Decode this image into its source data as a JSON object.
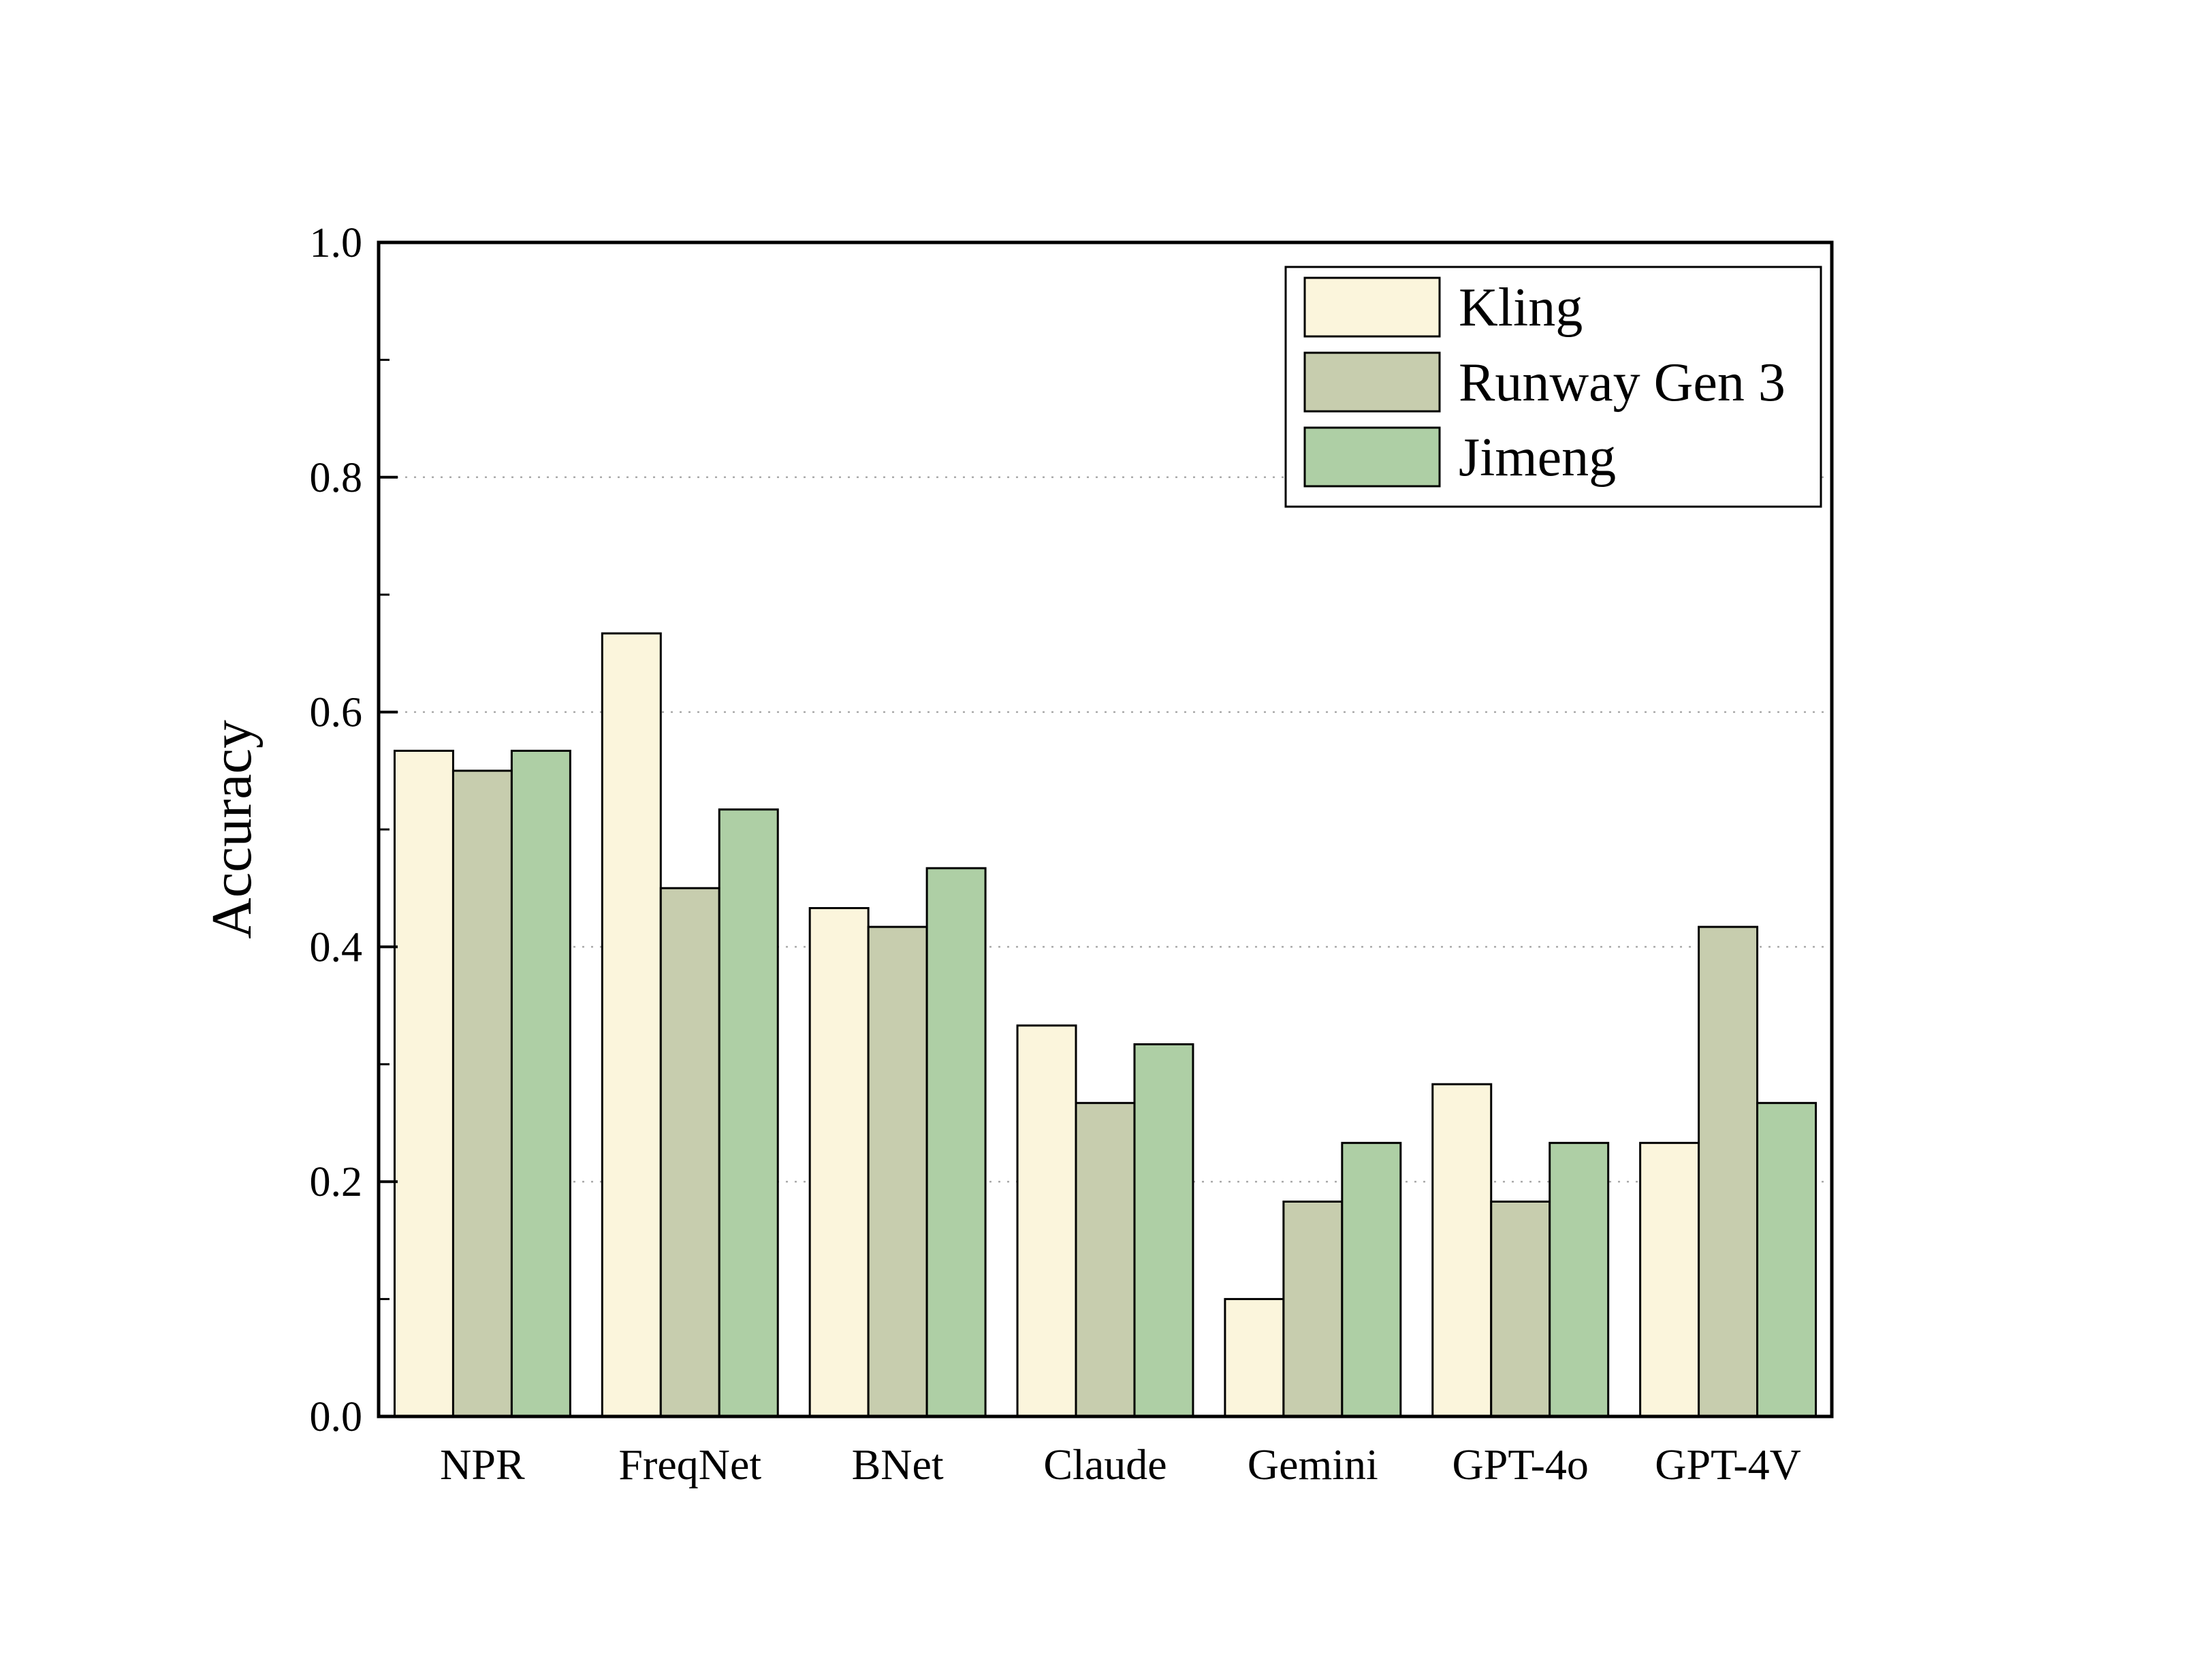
{
  "chart_data": {
    "type": "bar",
    "title": "",
    "xlabel": "",
    "ylabel": "Accuracy",
    "ylim": [
      0.0,
      1.0
    ],
    "yticks": [
      0.0,
      0.2,
      0.4,
      0.6,
      0.8,
      1.0
    ],
    "ytick_labels": [
      "0.0",
      "0.2",
      "0.4",
      "0.6",
      "0.8",
      "1.0"
    ],
    "minor_tick_step": 0.1,
    "grid": "dotted horizontal gridlines at 0.2, 0.4, 0.6, 0.8",
    "legend_position": "top-right",
    "categories": [
      "NPR",
      "FreqNet",
      "BNet",
      "Claude",
      "Gemini",
      "GPT-4o",
      "GPT-4V"
    ],
    "series": [
      {
        "name": "Kling",
        "color": "#FBF5DC",
        "values": [
          0.567,
          0.667,
          0.433,
          0.333,
          0.1,
          0.283,
          0.233
        ]
      },
      {
        "name": "Runway Gen 3",
        "color": "#C7CDAE",
        "values": [
          0.55,
          0.45,
          0.417,
          0.267,
          0.183,
          0.183,
          0.417
        ]
      },
      {
        "name": "Jimeng",
        "color": "#AECFA5",
        "values": [
          0.567,
          0.517,
          0.467,
          0.317,
          0.233,
          0.233,
          0.267
        ]
      }
    ],
    "colors": {
      "bar_outline": "#000000",
      "axis": "#000000",
      "gridline": "#aaaaaa",
      "legend_background": "#ffffff"
    }
  }
}
